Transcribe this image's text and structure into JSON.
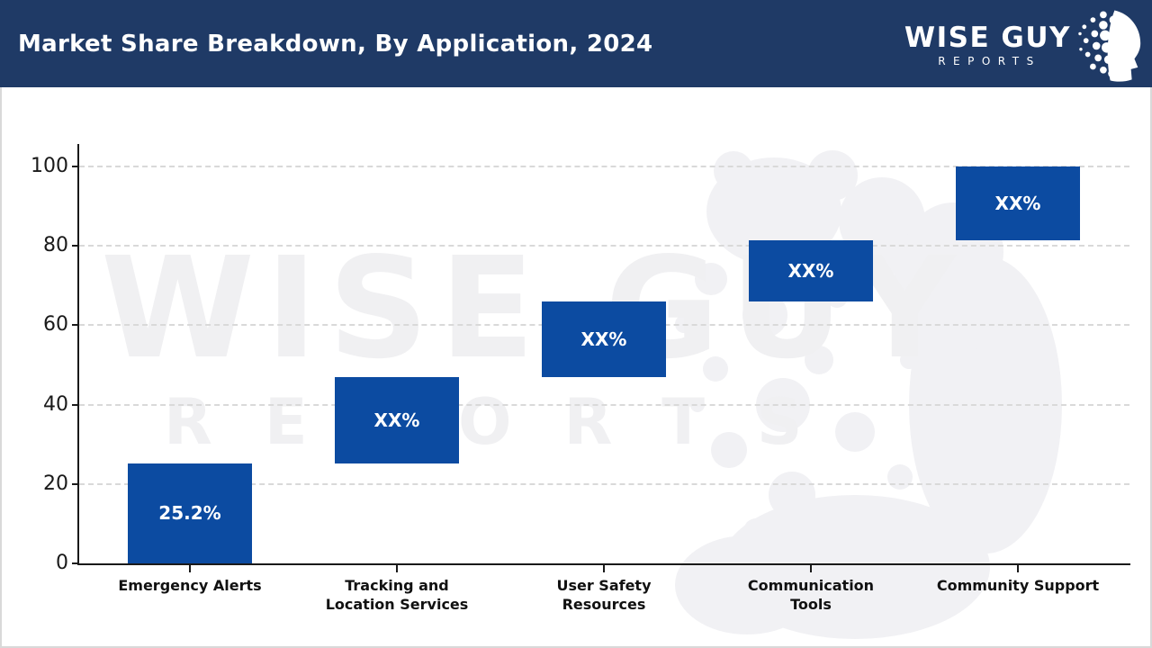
{
  "header": {
    "title": "Market Share Breakdown, By Application, 2024",
    "brand": {
      "line1": "WISE GUY",
      "line2": "REPORTS"
    }
  },
  "watermark": {
    "line1": "WISE GUY",
    "line2": "REPORTS"
  },
  "colors": {
    "header_bg": "#1F3A66",
    "bar_blue": "#0C4BA1",
    "gridline": "#D9D9D9",
    "watermark_gray": "#F0F0F2",
    "axis_black": "#1A1A1A"
  },
  "chart_data": {
    "type": "bar",
    "subtype": "waterfall",
    "title": "Market Share Breakdown, By Application, 2024",
    "xlabel": "",
    "ylabel": "",
    "ylim": [
      0,
      100
    ],
    "yticks": [
      0,
      20,
      40,
      60,
      80,
      100
    ],
    "grid": "horizontal-dashed",
    "legend": "none",
    "bar_color": "#0C4BA1",
    "categories": [
      "Emergency Alerts",
      "Tracking and\nLocation Services",
      "User Safety\nResources",
      "Communication\nTools",
      "Community Support"
    ],
    "bars": [
      {
        "category": "Emergency Alerts",
        "start": 0,
        "end": 25.2,
        "label": "25.2%"
      },
      {
        "category": "Tracking and\nLocation Services",
        "start": 25.2,
        "end": 47,
        "label": "XX%"
      },
      {
        "category": "User Safety\nResources",
        "start": 47,
        "end": 66,
        "label": "XX%"
      },
      {
        "category": "Communication\nTools",
        "start": 66,
        "end": 81.5,
        "label": "XX%"
      },
      {
        "category": "Community Support",
        "start": 81.5,
        "end": 100,
        "label": "XX%"
      }
    ]
  }
}
